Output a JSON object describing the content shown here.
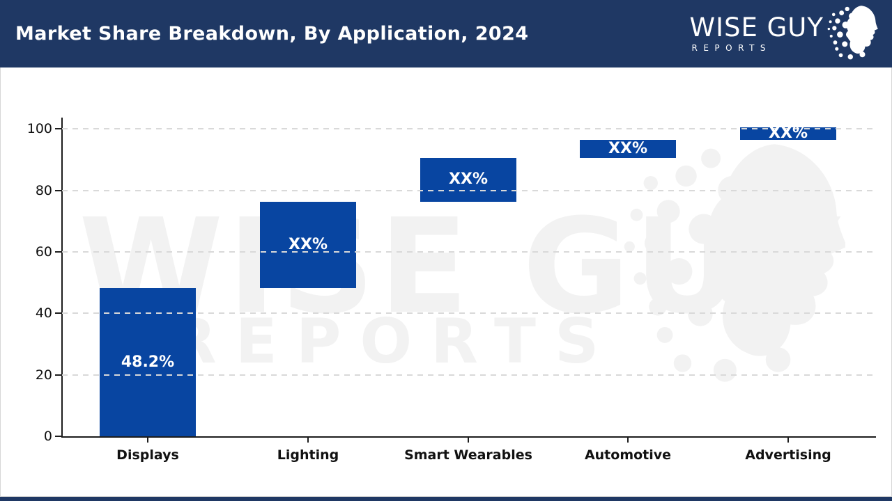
{
  "header": {
    "title": "Market Share Breakdown, By Application, 2024",
    "bg_color": "#1f3864",
    "logo": {
      "line1": "WISE GUY",
      "line2": "REPORTS"
    }
  },
  "watermark": {
    "line1": "WISE GUY",
    "line2": "REPORTS"
  },
  "chart_data": {
    "type": "bar",
    "subtype": "waterfall-stacked-segments",
    "title": "Market Share Breakdown, By Application, 2024",
    "categories": [
      "Displays",
      "Lighting",
      "Smart Wearables",
      "Automotive",
      "Advertising"
    ],
    "segments": [
      {
        "category": "Displays",
        "start": 0,
        "end": 48.2,
        "label": "48.2%"
      },
      {
        "category": "Lighting",
        "start": 48.2,
        "end": 76.4,
        "label": "XX%"
      },
      {
        "category": "Smart Wearables",
        "start": 76.4,
        "end": 90.5,
        "label": "XX%"
      },
      {
        "category": "Automotive",
        "start": 90.5,
        "end": 96.5,
        "label": "XX%"
      },
      {
        "category": "Advertising",
        "start": 96.5,
        "end": 100.5,
        "label": "XX%"
      }
    ],
    "yticks": [
      0,
      20,
      40,
      60,
      80,
      100
    ],
    "ylim": [
      0,
      105
    ],
    "xlabel": "",
    "ylabel": "",
    "bar_color": "#0845a1",
    "grid": "horizontal-dashed-over-bars",
    "grid_color": "#d9d9d9",
    "legend": "none"
  }
}
